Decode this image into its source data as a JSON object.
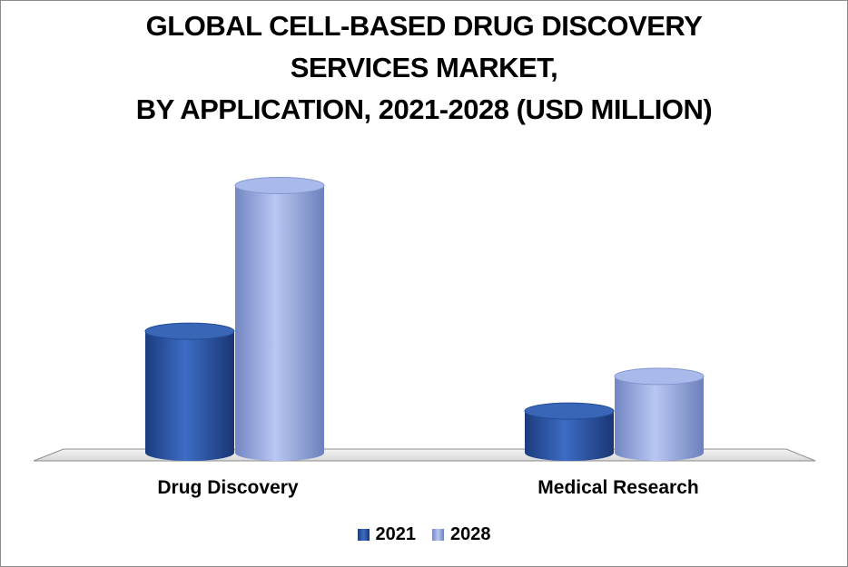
{
  "chart_data": {
    "type": "bar",
    "title_lines": [
      "GLOBAL CELL-BASED DRUG DISCOVERY",
      "SERVICES MARKET,",
      "BY APPLICATION, 2021-2028 (USD MILLION)"
    ],
    "categories": [
      "Drug Discovery",
      "Medical Research"
    ],
    "series": [
      {
        "name": "2021",
        "values": [
          140,
          48
        ],
        "color": "#2e59a8"
      },
      {
        "name": "2028",
        "values": [
          308,
          88
        ],
        "color": "#9aaee3"
      }
    ],
    "ylim": [
      0,
      320
    ],
    "grid": false,
    "legend_position": "bottom",
    "style": "3d-cylinder"
  }
}
